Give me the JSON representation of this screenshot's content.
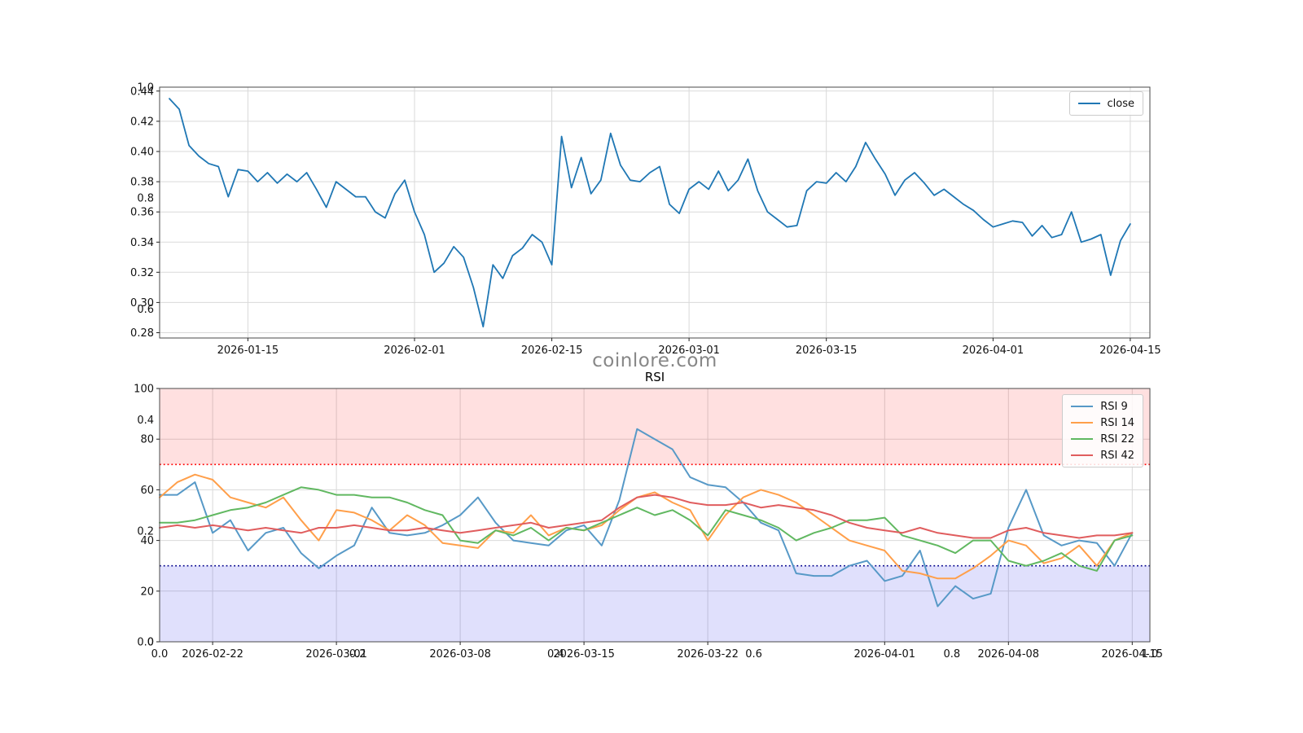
{
  "watermark": "coinlore.com",
  "rsi_title": "RSI",
  "ghost_axis": {
    "y_labels": [
      "0.0",
      "0.2",
      "0.4",
      "0.6",
      "0.8",
      "1.0"
    ],
    "x_labels": [
      "0.0",
      "0.2",
      "0.4",
      "0.6",
      "0.8",
      "1.0"
    ]
  },
  "chart_data": [
    {
      "type": "line",
      "name": "price-chart",
      "title": "",
      "xlabel": "",
      "ylabel": "",
      "legend_position": "upper right",
      "grid": true,
      "x_start_date": "2026-01-07",
      "x_tick_labels": [
        "2026-01-15",
        "2026-02-01",
        "2026-02-15",
        "2026-03-01",
        "2026-03-15",
        "2026-04-01",
        "2026-04-15"
      ],
      "y_ticks": [
        "0.28",
        "0.30",
        "0.32",
        "0.34",
        "0.36",
        "0.38",
        "0.40",
        "0.42",
        "0.44"
      ],
      "ylim": [
        0.2765,
        0.4426
      ],
      "series": [
        {
          "id": "close",
          "name": "close",
          "color": "#1f77b4",
          "values": [
            0.435,
            0.428,
            0.404,
            0.397,
            0.392,
            0.39,
            0.37,
            0.388,
            0.387,
            0.38,
            0.386,
            0.379,
            0.385,
            0.38,
            0.386,
            0.375,
            0.363,
            0.38,
            0.375,
            0.37,
            0.37,
            0.36,
            0.356,
            0.372,
            0.381,
            0.36,
            0.345,
            0.32,
            0.326,
            0.337,
            0.33,
            0.31,
            0.284,
            0.325,
            0.316,
            0.331,
            0.336,
            0.345,
            0.34,
            0.325,
            0.41,
            0.376,
            0.396,
            0.372,
            0.381,
            0.412,
            0.391,
            0.381,
            0.38,
            0.386,
            0.39,
            0.365,
            0.359,
            0.375,
            0.38,
            0.375,
            0.387,
            0.374,
            0.381,
            0.395,
            0.374,
            0.36,
            0.355,
            0.35,
            0.351,
            0.374,
            0.38,
            0.379,
            0.386,
            0.38,
            0.39,
            0.406,
            0.395,
            0.385,
            0.371,
            0.381,
            0.386,
            0.379,
            0.371,
            0.375,
            0.37,
            0.365,
            0.361,
            0.355,
            0.35,
            0.352,
            0.354,
            0.353,
            0.344,
            0.351,
            0.343,
            0.345,
            0.36,
            0.34,
            0.342,
            0.345,
            0.318,
            0.341,
            0.352
          ]
        }
      ]
    },
    {
      "type": "line",
      "name": "rsi-chart",
      "title": "RSI",
      "xlabel": "",
      "ylabel": "",
      "legend_position": "upper right",
      "grid": true,
      "x_start_date": "2026-02-19",
      "x_tick_labels": [
        "2026-02-22",
        "2026-03-01",
        "2026-03-08",
        "2026-03-15",
        "2026-03-22",
        "2026-04-01",
        "2026-04-08",
        "2026-04-15"
      ],
      "y_ticks": [
        0,
        20,
        40,
        60,
        80,
        100
      ],
      "ylim": [
        0,
        100
      ],
      "bands": [
        {
          "from": 70,
          "to": 100,
          "color": "rgba(255,0,0,0.12)",
          "meaning": "overbought"
        },
        {
          "from": 0,
          "to": 30,
          "color": "rgba(0,0,230,0.12)",
          "meaning": "oversold"
        }
      ],
      "hlines": [
        {
          "y": 70,
          "color": "#ff0000",
          "style": "dotted"
        },
        {
          "y": 30,
          "color": "#00008b",
          "style": "dotted"
        }
      ],
      "series": [
        {
          "id": "rsi-9",
          "name": "RSI 9",
          "color": "#5799c7",
          "values": [
            58,
            58,
            63,
            43,
            48,
            36,
            43,
            45,
            35,
            29,
            34,
            38,
            53,
            43,
            42,
            43,
            46,
            50,
            57,
            47,
            40,
            39,
            38,
            44,
            46,
            38,
            56,
            84,
            80,
            76,
            65,
            62,
            61,
            55,
            47,
            44,
            27,
            26,
            26,
            30,
            32,
            24,
            26,
            36,
            14,
            22,
            17,
            19,
            45,
            60,
            42,
            38,
            40,
            39,
            30,
            43
          ]
        },
        {
          "id": "rsi-14",
          "name": "RSI 14",
          "color": "#ff9f4a",
          "values": [
            57,
            63,
            66,
            64,
            57,
            55,
            53,
            57,
            48,
            40,
            52,
            51,
            48,
            44,
            50,
            46,
            39,
            38,
            37,
            44,
            43,
            50,
            42,
            45,
            44,
            46,
            52,
            57,
            59,
            55,
            52,
            40,
            50,
            57,
            60,
            58,
            55,
            50,
            45,
            40,
            38,
            36,
            28,
            27,
            25,
            25,
            29,
            34,
            40,
            38,
            31,
            33,
            38,
            30,
            40,
            43
          ]
        },
        {
          "id": "rsi-22",
          "name": "RSI 22",
          "color": "#61b861",
          "values": [
            47,
            47,
            48,
            50,
            52,
            53,
            55,
            58,
            61,
            60,
            58,
            58,
            57,
            57,
            55,
            52,
            50,
            40,
            39,
            44,
            42,
            45,
            40,
            45,
            44,
            47,
            50,
            53,
            50,
            52,
            48,
            42,
            52,
            50,
            48,
            45,
            40,
            43,
            45,
            48,
            48,
            49,
            42,
            40,
            38,
            35,
            40,
            40,
            32,
            30,
            32,
            35,
            30,
            28,
            40,
            42
          ]
        },
        {
          "id": "rsi-42",
          "name": "RSI 42",
          "color": "#e05d5e",
          "values": [
            45,
            46,
            45,
            46,
            45,
            44,
            45,
            44,
            43,
            45,
            45,
            46,
            45,
            44,
            44,
            45,
            44,
            43,
            44,
            45,
            46,
            47,
            45,
            46,
            47,
            48,
            53,
            57,
            58,
            57,
            55,
            54,
            54,
            55,
            53,
            54,
            53,
            52,
            50,
            47,
            45,
            44,
            43,
            45,
            43,
            42,
            41,
            41,
            44,
            45,
            43,
            42,
            41,
            42,
            42,
            43
          ]
        }
      ]
    }
  ]
}
